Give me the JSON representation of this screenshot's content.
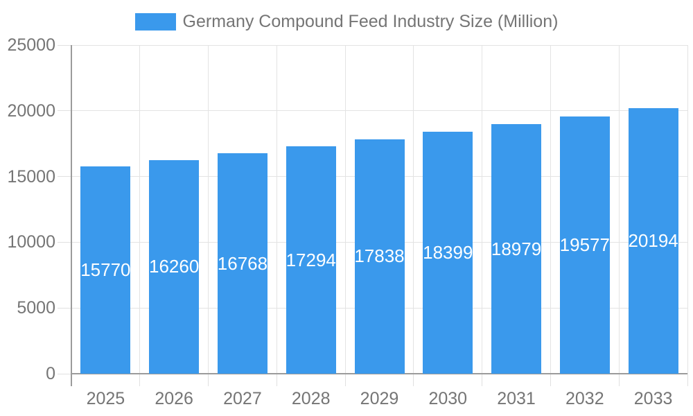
{
  "legend": {
    "label": "Germany Compound Feed Industry Size (Million)"
  },
  "colors": {
    "bar": "#3A99EC",
    "axis": "#9b9b9b",
    "grid": "#e3e3e3",
    "tick": "#e0e0e0",
    "text": "#757575",
    "value_label": "#ffffff",
    "background": "#ffffff"
  },
  "chart_data": {
    "type": "bar",
    "title": "Germany Compound Feed Industry Size (Million)",
    "categories": [
      "2025",
      "2026",
      "2027",
      "2028",
      "2029",
      "2030",
      "2031",
      "2032",
      "2033"
    ],
    "series": [
      {
        "name": "Germany Compound Feed Industry Size (Million)",
        "color": "#3A99EC",
        "values": [
          15770,
          16260,
          16768,
          17294,
          17838,
          18399,
          18979,
          19577,
          20194
        ]
      }
    ],
    "xlabel": "",
    "ylabel": "",
    "ylim": [
      0,
      25000
    ],
    "yticks": [
      0,
      5000,
      10000,
      15000,
      20000,
      25000
    ],
    "grid": true,
    "legend_position": "top",
    "value_labels": "inside-center"
  }
}
